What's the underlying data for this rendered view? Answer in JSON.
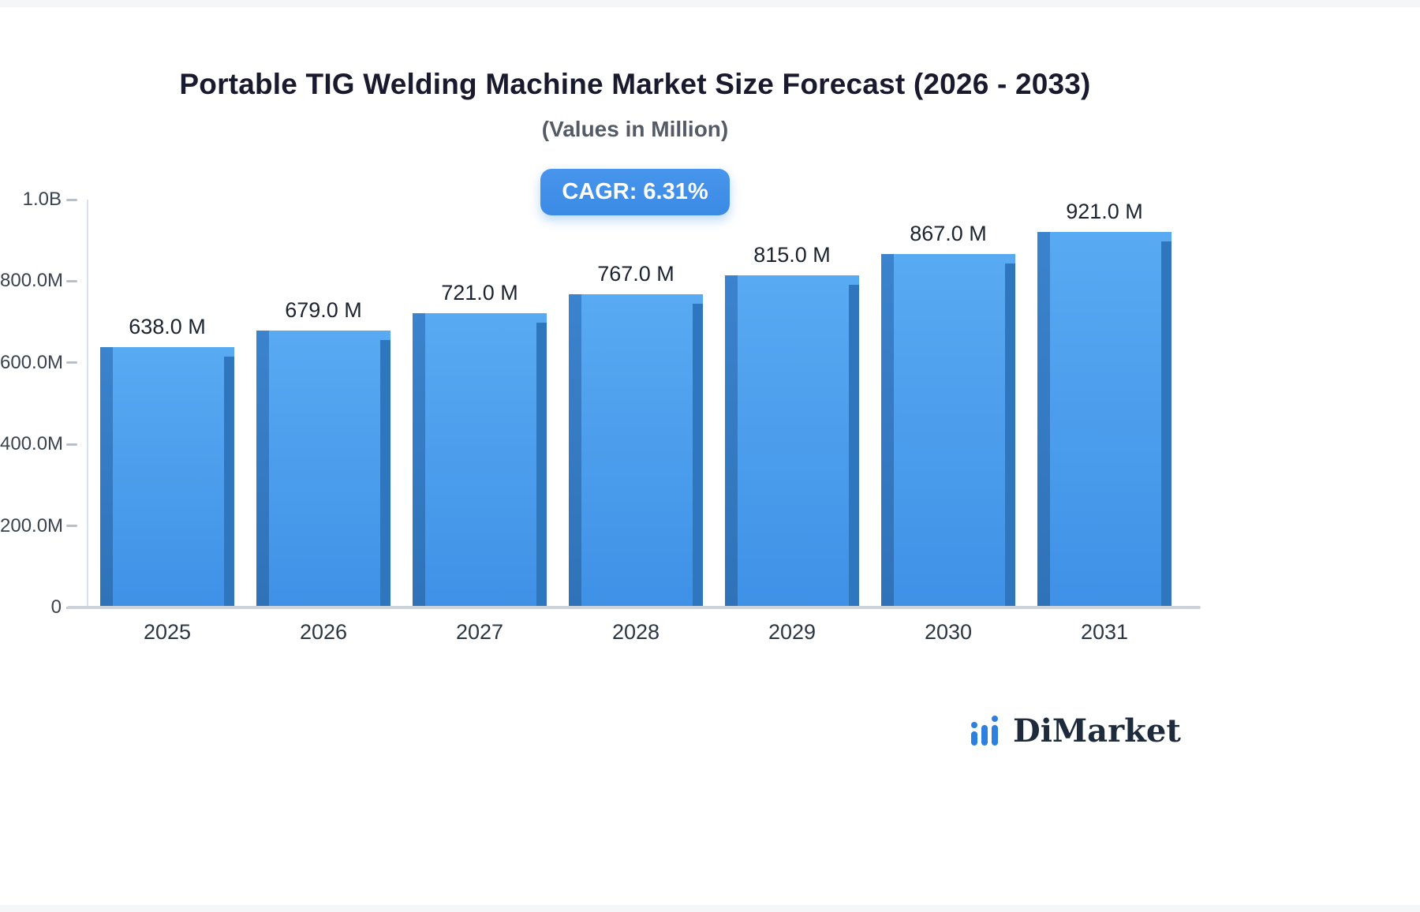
{
  "chart_data": {
    "type": "bar",
    "title": "Portable TIG Welding Machine Market Size Forecast (2026 - 2033)",
    "subtitle": "(Values in Million)",
    "badge": "CAGR: 6.31%",
    "categories": [
      "2025",
      "2026",
      "2027",
      "2028",
      "2029",
      "2030",
      "2031"
    ],
    "values": [
      638,
      679,
      721,
      767,
      815,
      867,
      921
    ],
    "value_labels": [
      "638.0 M",
      "679.0 M",
      "721.0 M",
      "767.0 M",
      "815.0 M",
      "867.0 M",
      "921.0 M"
    ],
    "ytick_labels": [
      "1.0B",
      "800.0M",
      "600.0M",
      "400.0M",
      "200.0M",
      "0"
    ],
    "ylim": [
      0,
      1000
    ],
    "unit": "Million",
    "grid": false,
    "legend": "none",
    "bar_color": "#4da0ef",
    "bar_side_color": "#2e76be"
  },
  "branding": {
    "logo_text": "DiMarket",
    "logo_icon": "bar-chart-icon",
    "logo_color": "#2d7fe0",
    "logo_text_color": "#1e2b3c"
  }
}
